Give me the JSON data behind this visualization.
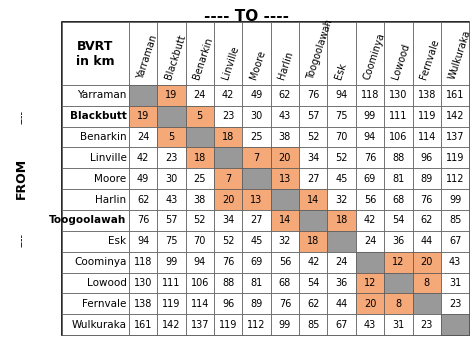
{
  "title": "---- TO ----",
  "from_label": "FROM",
  "locations": [
    "Yarraman",
    "Blackbutt",
    "Benarkin",
    "Linville",
    "Moore",
    "Harlin",
    "Toogoolawah",
    "Esk",
    "Coominya",
    "Lowood",
    "Fernvale",
    "Wulkuraka"
  ],
  "values": [
    [
      null,
      19,
      24,
      42,
      49,
      62,
      76,
      94,
      118,
      130,
      138,
      161
    ],
    [
      19,
      null,
      5,
      23,
      30,
      43,
      57,
      75,
      99,
      111,
      119,
      142
    ],
    [
      24,
      5,
      null,
      18,
      25,
      38,
      52,
      70,
      94,
      106,
      114,
      137
    ],
    [
      42,
      23,
      18,
      null,
      7,
      20,
      34,
      52,
      76,
      88,
      96,
      119
    ],
    [
      49,
      30,
      25,
      7,
      null,
      13,
      27,
      45,
      69,
      81,
      89,
      112
    ],
    [
      62,
      43,
      38,
      20,
      13,
      null,
      14,
      32,
      56,
      68,
      76,
      99
    ],
    [
      76,
      57,
      52,
      34,
      27,
      14,
      null,
      18,
      42,
      54,
      62,
      85
    ],
    [
      94,
      75,
      70,
      52,
      45,
      32,
      18,
      null,
      24,
      36,
      44,
      67
    ],
    [
      118,
      99,
      94,
      76,
      69,
      56,
      42,
      24,
      null,
      12,
      20,
      43
    ],
    [
      130,
      111,
      106,
      88,
      81,
      68,
      54,
      36,
      12,
      null,
      8,
      31
    ],
    [
      138,
      119,
      114,
      96,
      89,
      76,
      62,
      44,
      20,
      8,
      null,
      23
    ],
    [
      161,
      142,
      137,
      119,
      112,
      99,
      85,
      67,
      43,
      31,
      23,
      null
    ]
  ],
  "highlight_threshold": 20,
  "diagonal_color": "#999999",
  "highlight_color": "#F5A878",
  "normal_color": "#FFFFFF",
  "header_bg": "#FFFFFF",
  "border_color": "#555555",
  "title_fontsize": 11,
  "cell_fontsize": 7,
  "header_fontsize": 7.5,
  "row_label_fontsize": 7.5,
  "bold_rows": [
    "Blackbutt",
    "Toogoolawah"
  ]
}
